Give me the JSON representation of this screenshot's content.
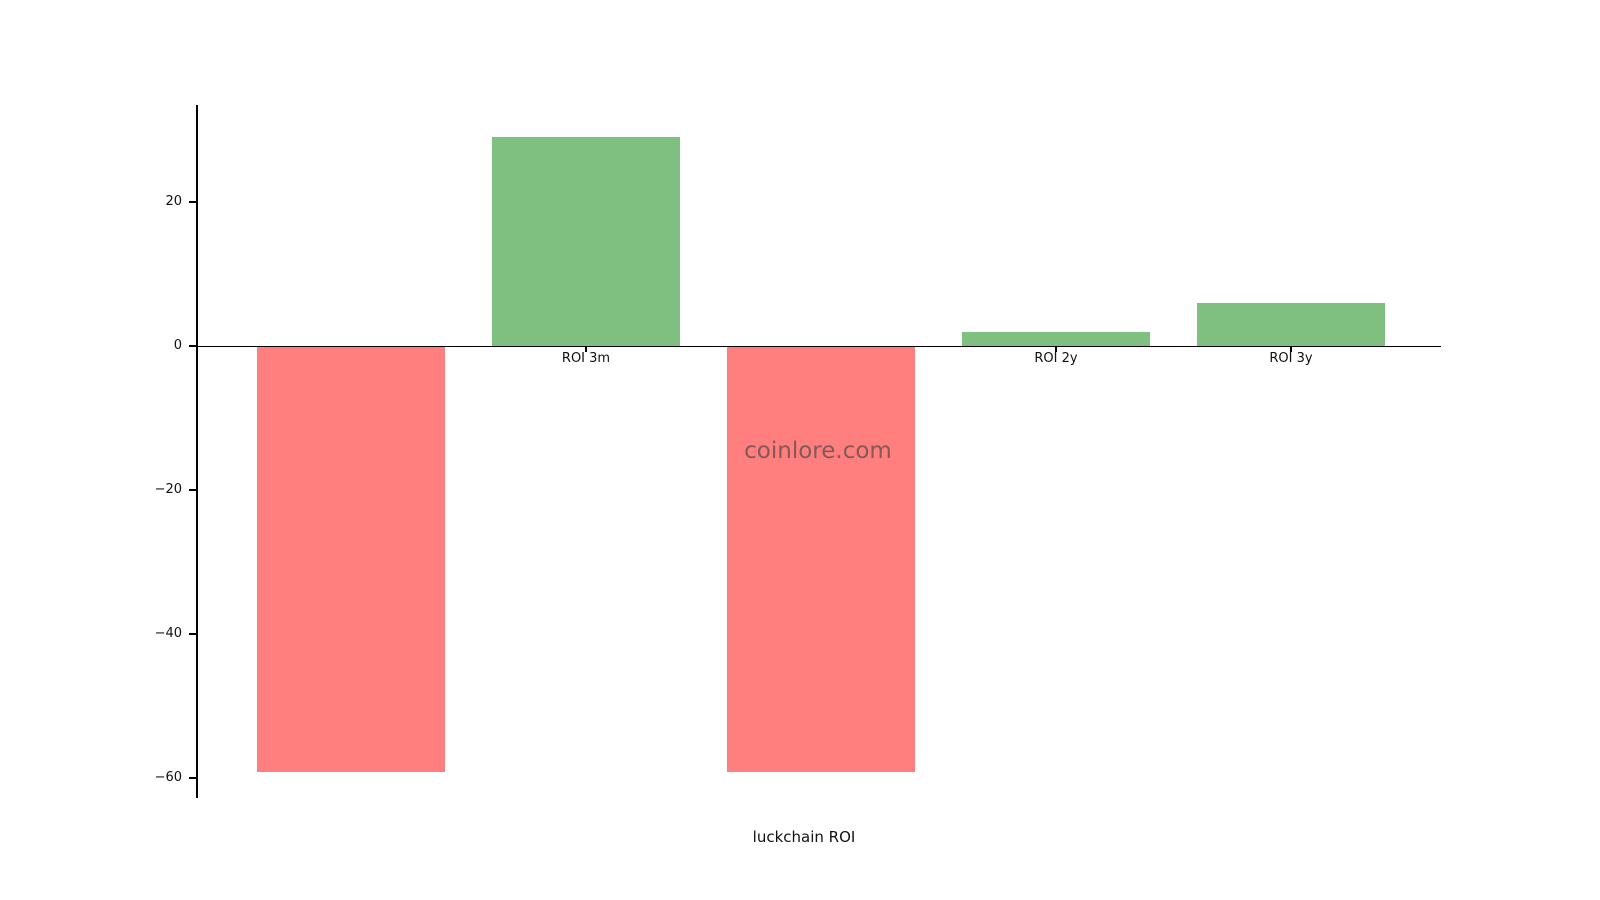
{
  "watermark": "coinlore.com",
  "colors": {
    "positive_bar": "#7fbf7f",
    "negative_bar": "#ff7f7f",
    "axis": "#000000",
    "watermark_text": "#444444"
  },
  "chart_data": {
    "type": "bar",
    "title": "",
    "xlabel": "luckchain ROI",
    "ylabel": "",
    "categories": [
      "",
      "ROI 3m",
      "",
      "ROI 2y",
      "ROI 3y"
    ],
    "values": [
      -59,
      29,
      -59,
      2,
      6
    ],
    "bar_colors_by_sign": {
      "positive": "#7fbf7f",
      "negative": "#ff7f7f"
    },
    "yticks": [
      20,
      0,
      -20,
      -40,
      -60
    ],
    "ytick_labels": [
      "20",
      "0",
      "−20",
      "−40",
      "−60"
    ],
    "ylim": [
      -62.8,
      33.5
    ],
    "grid": false,
    "legend": null,
    "notes": "x tick labels of the two negative bars are hidden behind the bars"
  }
}
